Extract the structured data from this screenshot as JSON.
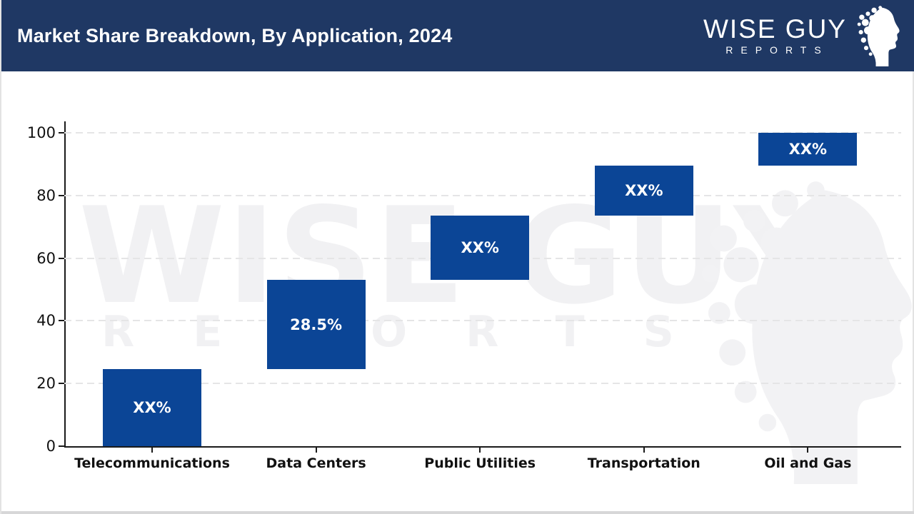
{
  "header": {
    "title": "Market Share Breakdown, By Application, 2024",
    "bg_color": "#1f3864",
    "logo": {
      "line1": "WISE GUY",
      "line2": "REPORTS"
    }
  },
  "watermark": {
    "line1": "WISE GUY",
    "line2": "REPORTS"
  },
  "chart_data": {
    "type": "bar",
    "subtype": "waterfall",
    "title": "Market Share Breakdown, By Application, 2024",
    "categories": [
      "Telecommunications",
      "Data Centers",
      "Public Utilities",
      "Transportation",
      "Oil and Gas"
    ],
    "series": [
      {
        "name": "Market Share (%)",
        "segments": [
          {
            "category": "Telecommunications",
            "start": 0,
            "end": 24.5,
            "label": "XX%"
          },
          {
            "category": "Data Centers",
            "start": 24.5,
            "end": 53,
            "label": "28.5%"
          },
          {
            "category": "Public Utilities",
            "start": 53,
            "end": 73.5,
            "label": "XX%"
          },
          {
            "category": "Transportation",
            "start": 73.5,
            "end": 89.5,
            "label": "XX%"
          },
          {
            "category": "Oil and Gas",
            "start": 89.5,
            "end": 100,
            "label": "XX%"
          }
        ]
      }
    ],
    "xlabel": "",
    "ylabel": "",
    "yticks": [
      0,
      20,
      40,
      60,
      80,
      100
    ],
    "ylim": [
      0,
      103.5
    ],
    "grid": "horizontal-dashed",
    "legend": "none",
    "bar_color": "#0b4596",
    "bar_label_color": "#ffffff",
    "axis_color": "#1a1a1a",
    "gridline_color": "#e5e5e6"
  }
}
